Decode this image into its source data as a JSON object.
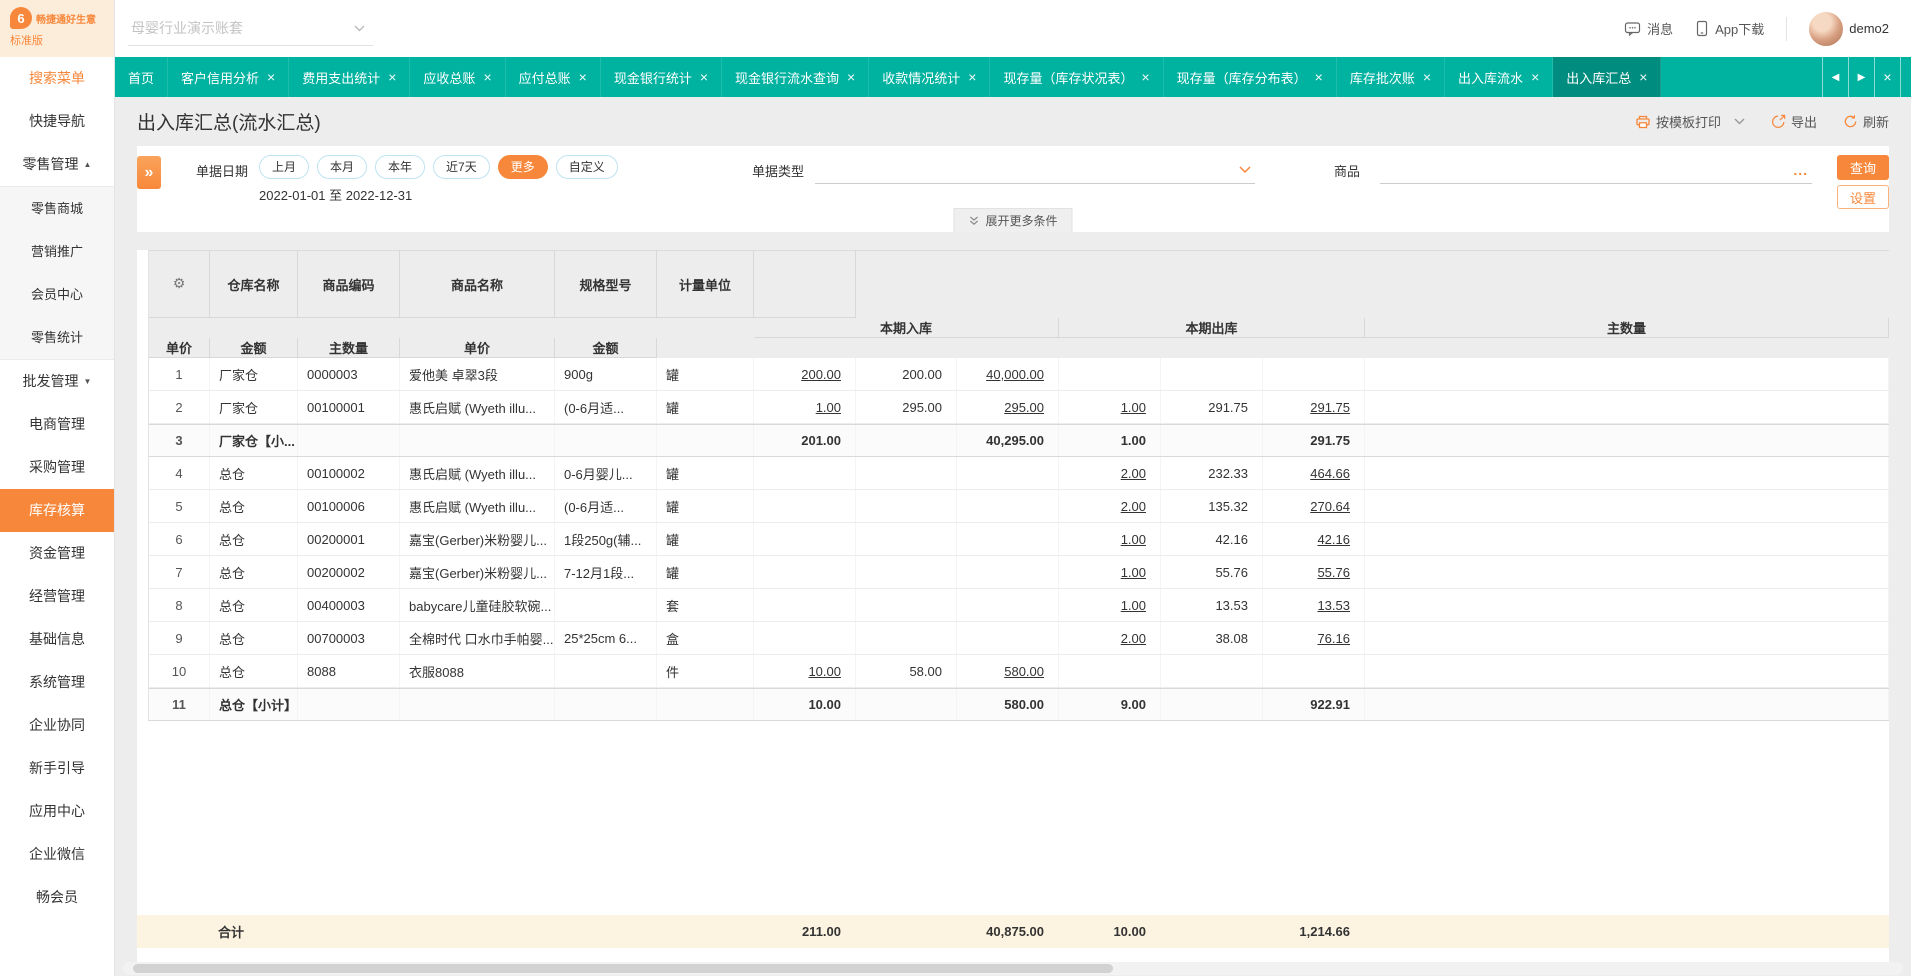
{
  "brand": {
    "logo_glyph": "6",
    "name": "畅捷通好生意",
    "edition": "标准版"
  },
  "topbar": {
    "account_placeholder": "母婴行业演示账套",
    "messages_label": "消息",
    "app_download_label": "App下载",
    "username": "demo2"
  },
  "sidebar": {
    "items": [
      {
        "label": "搜索菜单",
        "style": "search"
      },
      {
        "label": "快捷导航",
        "style": "normal"
      },
      {
        "label": "零售管理",
        "style": "group-open"
      },
      {
        "label": "零售商城",
        "style": "sub"
      },
      {
        "label": "营销推广",
        "style": "sub"
      },
      {
        "label": "会员中心",
        "style": "sub"
      },
      {
        "label": "零售统计",
        "style": "sub"
      },
      {
        "label": "批发管理",
        "style": "group-closed"
      },
      {
        "label": "电商管理",
        "style": "normal"
      },
      {
        "label": "采购管理",
        "style": "normal"
      },
      {
        "label": "库存核算",
        "style": "active"
      },
      {
        "label": "资金管理",
        "style": "normal"
      },
      {
        "label": "经营管理",
        "style": "normal"
      },
      {
        "label": "基础信息",
        "style": "normal"
      },
      {
        "label": "系统管理",
        "style": "normal"
      },
      {
        "label": "企业协同",
        "style": "normal"
      },
      {
        "label": "新手引导",
        "style": "normal"
      },
      {
        "label": "应用中心",
        "style": "normal"
      },
      {
        "label": "企业微信",
        "style": "normal"
      },
      {
        "label": "畅会员",
        "style": "normal"
      }
    ]
  },
  "tabs": [
    {
      "label": "首页",
      "closable": false,
      "active": false
    },
    {
      "label": "客户信用分析",
      "closable": true,
      "active": false
    },
    {
      "label": "费用支出统计",
      "closable": true,
      "active": false
    },
    {
      "label": "应收总账",
      "closable": true,
      "active": false
    },
    {
      "label": "应付总账",
      "closable": true,
      "active": false
    },
    {
      "label": "现金银行统计",
      "closable": true,
      "active": false
    },
    {
      "label": "现金银行流水查询",
      "closable": true,
      "active": false
    },
    {
      "label": "收款情况统计",
      "closable": true,
      "active": false
    },
    {
      "label": "现存量（库存状况表）",
      "closable": true,
      "active": false
    },
    {
      "label": "现存量（库存分布表）",
      "closable": true,
      "active": false
    },
    {
      "label": "库存批次账",
      "closable": true,
      "active": false
    },
    {
      "label": "出入库流水",
      "closable": true,
      "active": false
    },
    {
      "label": "出入库汇总",
      "closable": true,
      "active": true
    }
  ],
  "tab_controls": {
    "prev": "◀",
    "next": "▶",
    "close_all": "×"
  },
  "icons": {
    "gear": "⚙",
    "expand": "»",
    "caret_up": "▲",
    "caret_down": "▼",
    "tab_close": "×"
  },
  "page": {
    "title": "出入库汇总(流水汇总)",
    "print_label": "按模板打印",
    "export_label": "导出",
    "refresh_label": "刷新"
  },
  "filters": {
    "date_label": "单据日期",
    "pills": [
      {
        "label": "上月",
        "active": false
      },
      {
        "label": "本月",
        "active": false
      },
      {
        "label": "本年",
        "active": false
      },
      {
        "label": "近7天",
        "active": false
      },
      {
        "label": "更多",
        "active": true
      },
      {
        "label": "自定义",
        "active": false
      }
    ],
    "date_range": "2022-01-01 至 2022-12-31",
    "doc_type_label": "单据类型",
    "product_label": "商品",
    "product_more": "...",
    "query_label": "查询",
    "settings_label": "设置",
    "expand_more_label": "展开更多条件"
  },
  "table": {
    "columns": {
      "warehouse": "仓库名称",
      "code": "商品编码",
      "name": "商品名称",
      "spec": "规格型号",
      "unit": "计量单位",
      "in_group": "本期入库",
      "out_group": "本期出库",
      "qty": "主数量",
      "price": "单价",
      "amount": "金额"
    },
    "rows": [
      {
        "num": "1",
        "warehouse": "厂家仓",
        "code": "0000003",
        "name": "爱他美 卓翠3段",
        "spec": "900g",
        "unit": "罐",
        "in_qty": "200.00",
        "in_price": "200.00",
        "in_amount": "40,000.00",
        "out_qty": "",
        "out_price": "",
        "out_amount": "",
        "subtotal": false
      },
      {
        "num": "2",
        "warehouse": "厂家仓",
        "code": "00100001",
        "name": "惠氏启赋 (Wyeth illu...",
        "spec": "(0-6月适...",
        "unit": "罐",
        "in_qty": "1.00",
        "in_price": "295.00",
        "in_amount": "295.00",
        "out_qty": "1.00",
        "out_price": "291.75",
        "out_amount": "291.75",
        "subtotal": false
      },
      {
        "num": "3",
        "warehouse": "厂家仓【小...",
        "code": "",
        "name": "",
        "spec": "",
        "unit": "",
        "in_qty": "201.00",
        "in_price": "",
        "in_amount": "40,295.00",
        "out_qty": "1.00",
        "out_price": "",
        "out_amount": "291.75",
        "subtotal": true
      },
      {
        "num": "4",
        "warehouse": "总仓",
        "code": "00100002",
        "name": "惠氏启赋 (Wyeth illu...",
        "spec": "0-6月婴儿...",
        "unit": "罐",
        "in_qty": "",
        "in_price": "",
        "in_amount": "",
        "out_qty": "2.00",
        "out_price": "232.33",
        "out_amount": "464.66",
        "subtotal": false
      },
      {
        "num": "5",
        "warehouse": "总仓",
        "code": "00100006",
        "name": "惠氏启赋 (Wyeth illu...",
        "spec": "(0-6月适...",
        "unit": "罐",
        "in_qty": "",
        "in_price": "",
        "in_amount": "",
        "out_qty": "2.00",
        "out_price": "135.32",
        "out_amount": "270.64",
        "subtotal": false
      },
      {
        "num": "6",
        "warehouse": "总仓",
        "code": "00200001",
        "name": "嘉宝(Gerber)米粉婴儿...",
        "spec": "1段250g(辅...",
        "unit": "罐",
        "in_qty": "",
        "in_price": "",
        "in_amount": "",
        "out_qty": "1.00",
        "out_price": "42.16",
        "out_amount": "42.16",
        "subtotal": false
      },
      {
        "num": "7",
        "warehouse": "总仓",
        "code": "00200002",
        "name": "嘉宝(Gerber)米粉婴儿...",
        "spec": "7-12月1段...",
        "unit": "罐",
        "in_qty": "",
        "in_price": "",
        "in_amount": "",
        "out_qty": "1.00",
        "out_price": "55.76",
        "out_amount": "55.76",
        "subtotal": false
      },
      {
        "num": "8",
        "warehouse": "总仓",
        "code": "00400003",
        "name": "babycare儿童硅胶软碗...",
        "spec": "",
        "unit": "套",
        "in_qty": "",
        "in_price": "",
        "in_amount": "",
        "out_qty": "1.00",
        "out_price": "13.53",
        "out_amount": "13.53",
        "subtotal": false
      },
      {
        "num": "9",
        "warehouse": "总仓",
        "code": "00700003",
        "name": "全棉时代 口水巾手帕婴...",
        "spec": "25*25cm 6...",
        "unit": "盒",
        "in_qty": "",
        "in_price": "",
        "in_amount": "",
        "out_qty": "2.00",
        "out_price": "38.08",
        "out_amount": "76.16",
        "subtotal": false
      },
      {
        "num": "10",
        "warehouse": "总仓",
        "code": "8088",
        "name": "衣服8088",
        "spec": "",
        "unit": "件",
        "in_qty": "10.00",
        "in_price": "58.00",
        "in_amount": "580.00",
        "out_qty": "",
        "out_price": "",
        "out_amount": "",
        "subtotal": false
      },
      {
        "num": "11",
        "warehouse": "总仓【小计】",
        "code": "",
        "name": "",
        "spec": "",
        "unit": "",
        "in_qty": "10.00",
        "in_price": "",
        "in_amount": "580.00",
        "out_qty": "9.00",
        "out_price": "",
        "out_amount": "922.91",
        "subtotal": true
      }
    ],
    "footer": {
      "label": "合计",
      "in_qty": "211.00",
      "in_amount": "40,875.00",
      "out_qty": "10.00",
      "out_amount": "1,214.66"
    }
  }
}
